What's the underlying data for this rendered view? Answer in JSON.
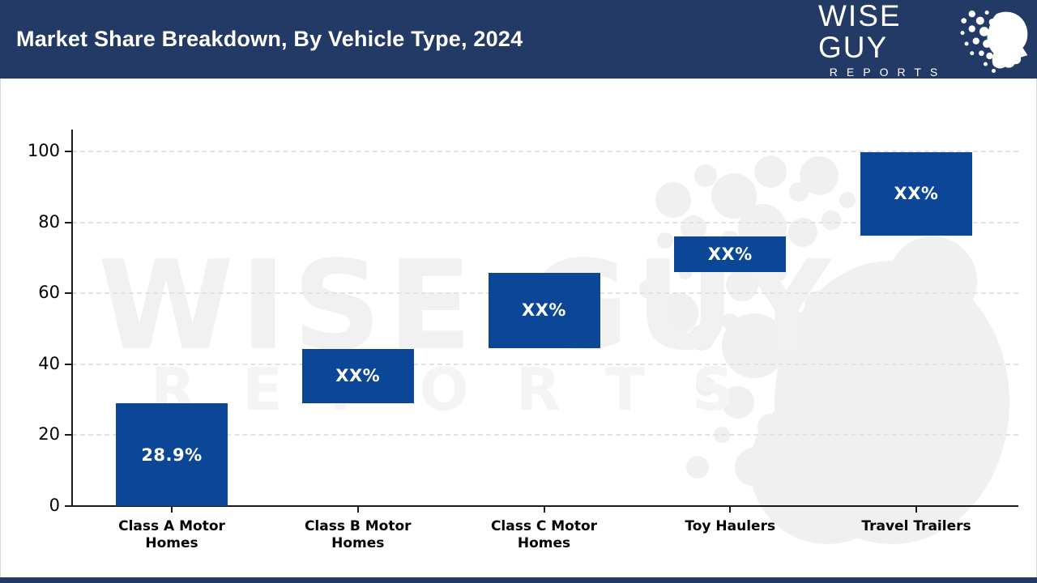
{
  "header": {
    "title": "Market Share Breakdown, By Vehicle Type, 2024",
    "logo": {
      "line1": "WISE GUY",
      "line2": "REPORTS"
    }
  },
  "watermark": {
    "line1": "WISE GUY",
    "line2": "REPORTS"
  },
  "colors": {
    "header_bg": "#233a66",
    "footer_bg": "#233a66",
    "bar": "#0b4697",
    "grid": "#e2e2e2",
    "axis": "#1a1a1a",
    "watermark": "#f1f1f1",
    "bar_label": "#ffffff",
    "title_text": "#ffffff"
  },
  "chart_data": {
    "type": "bar",
    "subtype": "waterfall",
    "title": "Market Share Breakdown, By Vehicle Type, 2024",
    "xlabel": "",
    "ylabel": "",
    "ylim": [
      0,
      100
    ],
    "yticks": [
      0,
      20,
      40,
      60,
      80,
      100
    ],
    "grid": true,
    "grid_style": "dashed",
    "legend": "none",
    "categories": [
      "Class A Motor\nHomes",
      "Class B Motor\nHomes",
      "Class C Motor\nHomes",
      "Toy Haulers",
      "Travel Trailers"
    ],
    "bars": [
      {
        "category": "Class A Motor\nHomes",
        "start": 0,
        "end": 28.9,
        "label": "28.9%"
      },
      {
        "category": "Class B Motor\nHomes",
        "start": 28.9,
        "end": 44.4,
        "label": "XX%"
      },
      {
        "category": "Class C Motor\nHomes",
        "start": 44.5,
        "end": 65.8,
        "label": "XX%"
      },
      {
        "category": "Toy Haulers",
        "start": 66.0,
        "end": 76.0,
        "label": "XX%"
      },
      {
        "category": "Travel Trailers",
        "start": 76.3,
        "end": 99.8,
        "label": "XX%"
      }
    ]
  }
}
